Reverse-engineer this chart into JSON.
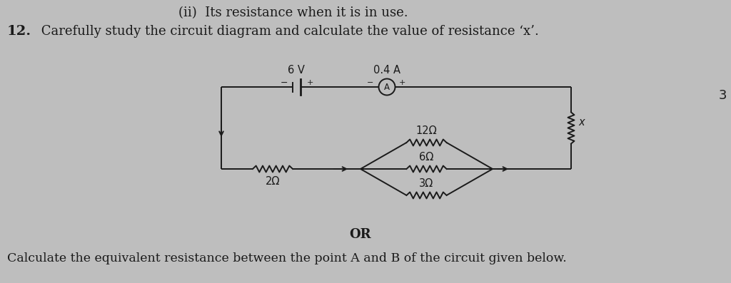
{
  "bg_color": "#bebebe",
  "text_color": "#1a1a1a",
  "line_color": "#1a1a1a",
  "title_ii": "(ii)  Its resistance when it is in use.",
  "title_12_bold": "12.",
  "title_12_rest": " Carefully study the circuit diagram and calculate the value of resistance ‘x’.",
  "label_6V": "6 V",
  "label_04A": "0.4 A",
  "label_2ohm": "2Ω",
  "label_12ohm": "12Ω",
  "label_6ohm": "6Ω",
  "label_3ohm": "3Ω",
  "label_x": "x",
  "label_OR": "OR",
  "label_bottom": "Calculate the equivalent resistance between the point A and B of the circuit given below.",
  "label_3_right": "3",
  "font_size_main": 13,
  "font_size_label": 10.5,
  "font_size_OR": 13,
  "font_size_bottom": 12.5
}
